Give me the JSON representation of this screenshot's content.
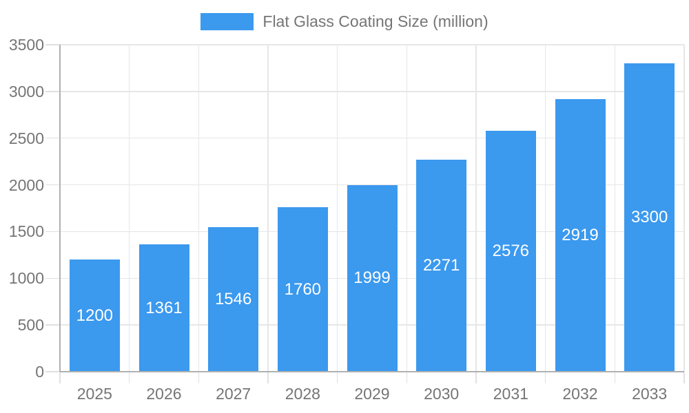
{
  "legend": {
    "label": "Flat Glass Coating Size (million)"
  },
  "chart_data": {
    "type": "bar",
    "title": "Flat Glass Coating Size (million)",
    "categories": [
      "2025",
      "2026",
      "2027",
      "2028",
      "2029",
      "2030",
      "2031",
      "2032",
      "2033"
    ],
    "values": [
      1200,
      1361,
      1546,
      1760,
      1999,
      2271,
      2576,
      2919,
      3300
    ],
    "xlabel": "",
    "ylabel": "",
    "ylim": [
      0,
      3500
    ],
    "yticks": [
      0,
      500,
      1000,
      1500,
      2000,
      2500,
      3000,
      3500
    ],
    "grid": true,
    "legend_position": "top-center",
    "bar_labels_inside": true,
    "colors": {
      "bar": "#3B99EE",
      "bar_label": "#FFFFFF",
      "gridline": "#E6E6E6",
      "tick": "#E0E0E0",
      "axis_line": "#B0B0B0",
      "text": "#757575",
      "background": "#FFFFFF"
    }
  }
}
